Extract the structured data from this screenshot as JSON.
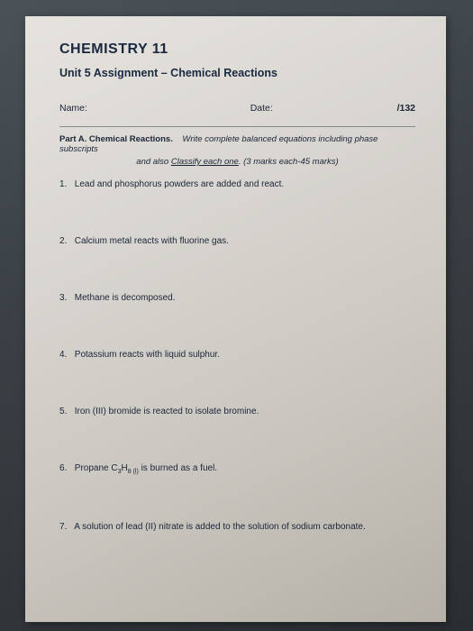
{
  "header": {
    "title": "CHEMISTRY 11",
    "subtitle": "Unit 5 Assignment – Chemical Reactions"
  },
  "meta": {
    "name_label": "Name:",
    "date_label": "Date:",
    "score": "/132"
  },
  "partA": {
    "label": "Part A. Chemical Reactions.",
    "instruction": "Write complete balanced equations including phase subscripts",
    "sub_pre": "and also ",
    "sub_underline": "Classify each one",
    "sub_post": ". (3 marks each-45 marks)"
  },
  "questions": [
    {
      "num": "1.",
      "text": "Lead and phosphorus powders are added and react."
    },
    {
      "num": "2.",
      "text": "Calcium metal reacts with fluorine gas."
    },
    {
      "num": "3.",
      "text": "Methane is decomposed."
    },
    {
      "num": "4.",
      "text": "Potassium reacts with liquid sulphur."
    },
    {
      "num": "5.",
      "text": "Iron (III) bromide is reacted to isolate bromine."
    },
    {
      "num": "6.",
      "pre": "Propane C",
      "sub1": "3",
      "mid": "H",
      "sub2": "8 (l)",
      "post": " is burned as a fuel."
    },
    {
      "num": "7.",
      "text": "A solution of lead (II) nitrate is added to the solution of sodium carbonate."
    }
  ]
}
